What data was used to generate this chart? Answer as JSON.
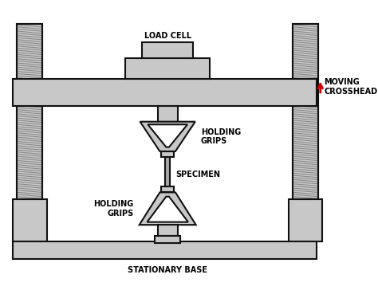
{
  "fig_width": 4.74,
  "fig_height": 3.79,
  "dpi": 100,
  "bg_color": "#ffffff",
  "gray_fill": "#c8c8c8",
  "dark_outline": "#111111",
  "arrow_color": "#cc0000",
  "title_text": "STATIONARY BASE",
  "load_cell_text": "LOAD CELL",
  "moving_crosshead_text": "MOVING\nCROSSHEAD",
  "holding_grips_upper_text": "HOLDING\nGRIPS",
  "holding_grips_lower_text": "HOLDING\nGRIPS",
  "specimen_text": "SPECIMEN",
  "lw": 1.5,
  "fs": 7.0
}
